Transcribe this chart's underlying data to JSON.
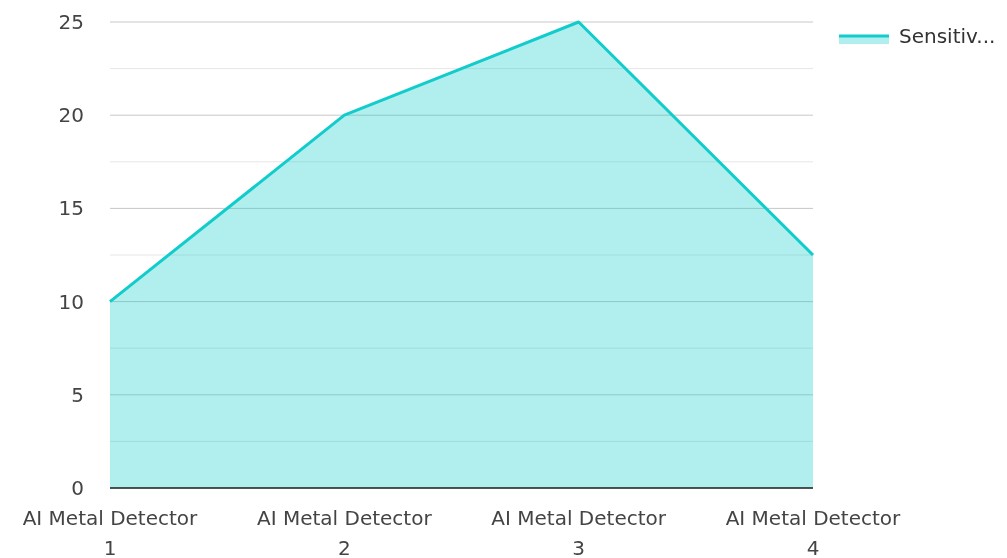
{
  "chart_data": {
    "type": "area",
    "categories": [
      "AI Metal Detector 1",
      "AI Metal Detector 2",
      "AI Metal Detector 3",
      "AI Metal Detector 4"
    ],
    "series": [
      {
        "name": "Sensitiv...",
        "color": "#12cccc",
        "values": [
          10,
          20,
          25,
          12.5
        ]
      }
    ],
    "ylim": [
      0,
      25
    ],
    "yticks": [
      0,
      {
        "value": 2.5,
        "label": null
      },
      5,
      {
        "value": 7.5,
        "label": null
      },
      10,
      {
        "value": 12.5,
        "label": null
      },
      15,
      {
        "value": 17.5,
        "label": null
      },
      20,
      {
        "value": 22.5,
        "label": null
      },
      25
    ],
    "grid": true,
    "legend": "top right"
  }
}
